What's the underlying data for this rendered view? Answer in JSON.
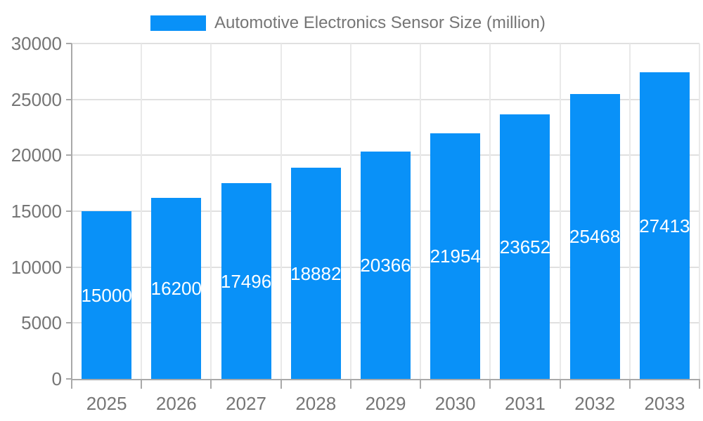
{
  "legend": {
    "label": "Automotive Electronics Sensor Size (million)"
  },
  "colors": {
    "bar": "#0991f8",
    "axis": "#a9a9a9",
    "grid_horizontal": "#e0e0e0",
    "grid_vertical": "#e9e9e9",
    "text": "#757575",
    "value_label": "#ffffff",
    "background": "#ffffff"
  },
  "chart_data": {
    "type": "bar",
    "title": "Automotive Electronics Sensor Size (million)",
    "categories": [
      "2025",
      "2026",
      "2027",
      "2028",
      "2029",
      "2030",
      "2031",
      "2032",
      "2033"
    ],
    "series": [
      {
        "name": "Automotive Electronics Sensor Size (million)",
        "values": [
          15000,
          16200,
          17496,
          18882,
          20366,
          21954,
          23652,
          25468,
          27413
        ]
      }
    ],
    "xlabel": "",
    "ylabel": "",
    "ylim": [
      0,
      30000
    ],
    "yticks": [
      0,
      5000,
      10000,
      15000,
      20000,
      25000,
      30000
    ],
    "grid": true,
    "legend_position": "top-center",
    "value_label_position": "inside-center"
  }
}
